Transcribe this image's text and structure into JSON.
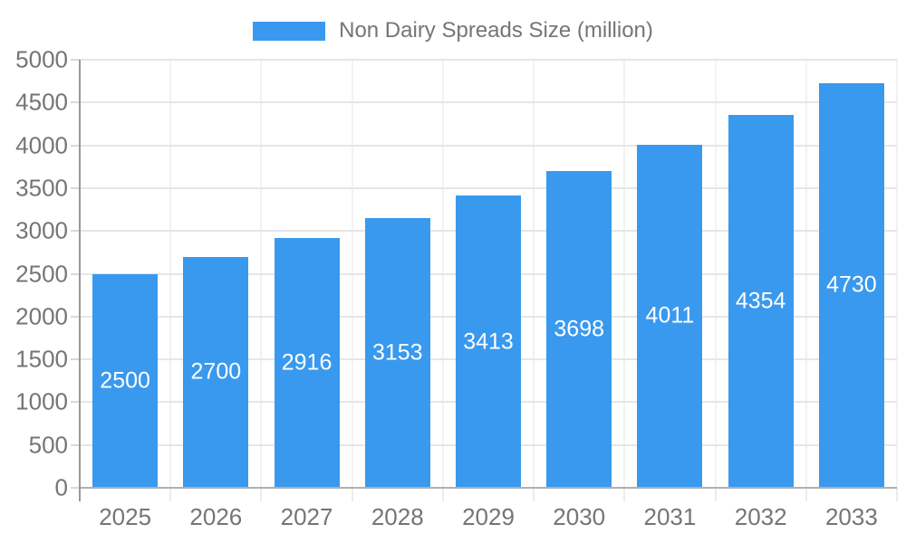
{
  "legend": {
    "label": "Non Dairy Spreads Size (million)"
  },
  "colors": {
    "bar": "#3999ee",
    "grid": "#e6e6e6",
    "y_axis_line": "#999999",
    "x_axis_line": "#b0b0b0",
    "tick": "#d9d9d9",
    "axis_text": "#757575",
    "bar_label_text": "#ffffff"
  },
  "chart_data": {
    "type": "bar",
    "title": "Non Dairy Spreads Size (million)",
    "series_name": "Non Dairy Spreads Size (million)",
    "categories": [
      "2025",
      "2026",
      "2027",
      "2028",
      "2029",
      "2030",
      "2031",
      "2032",
      "2033"
    ],
    "values": [
      2500,
      2700,
      2916,
      3153,
      3413,
      3698,
      4011,
      4354,
      4730
    ],
    "xlabel": "",
    "ylabel": "",
    "ylim": [
      0,
      5000
    ],
    "yticks": [
      0,
      500,
      1000,
      1500,
      2000,
      2500,
      3000,
      3500,
      4000,
      4500,
      5000
    ],
    "grid": true,
    "legend_position": "top",
    "bar_labels": "inside-center"
  }
}
